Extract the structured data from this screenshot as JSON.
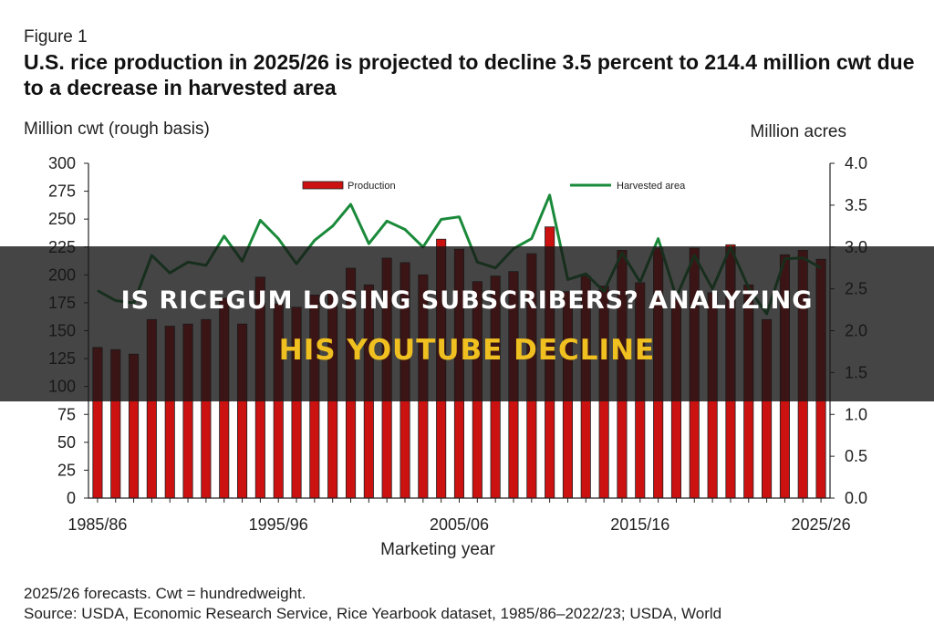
{
  "figure": {
    "label": "Figure 1",
    "title": "U.S. rice production in 2025/26 is projected to decline 3.5 percent to 214.4 million cwt due to a decrease in harvested area"
  },
  "chart_data": {
    "type": "bar",
    "subtype": "bar-line-dual-axis",
    "x_label": "Marketing year",
    "x_tick_labels": [
      "1985/86",
      "1995/96",
      "2005/06",
      "2015/16",
      "2025/26"
    ],
    "categories": [
      "1985/86",
      "1986/87",
      "1987/88",
      "1988/89",
      "1989/90",
      "1990/91",
      "1991/92",
      "1992/93",
      "1993/94",
      "1994/95",
      "1995/96",
      "1996/97",
      "1997/98",
      "1998/99",
      "1999/00",
      "2000/01",
      "2001/02",
      "2002/03",
      "2003/04",
      "2004/05",
      "2005/06",
      "2006/07",
      "2007/08",
      "2008/09",
      "2009/10",
      "2010/11",
      "2011/12",
      "2012/13",
      "2013/14",
      "2014/15",
      "2015/16",
      "2016/17",
      "2017/18",
      "2018/19",
      "2019/20",
      "2020/21",
      "2021/22",
      "2022/23",
      "2023/24",
      "2024/25",
      "2025/26"
    ],
    "y_left": {
      "label": "Million cwt (rough basis)",
      "min": 0,
      "max": 300,
      "step": 25
    },
    "y_right": {
      "label": "Million acres",
      "min": 0,
      "max": 4.0,
      "step": 0.5
    },
    "legend_placement": "top",
    "grid": false,
    "series": [
      {
        "name": "Production",
        "kind": "bar",
        "axis": "left",
        "color": "#cc1111",
        "values": [
          135,
          133,
          129,
          160,
          154,
          156,
          160,
          179,
          156,
          198,
          174,
          171,
          182,
          184,
          206,
          191,
          215,
          211,
          200,
          232,
          223,
          194,
          199,
          203,
          219,
          243,
          185,
          199,
          190,
          222,
          193,
          224,
          178,
          224,
          184,
          227,
          191,
          160,
          218,
          222,
          214
        ]
      },
      {
        "name": "Harvested area",
        "kind": "line",
        "axis": "right",
        "color": "#1a8a3a",
        "values": [
          2.48,
          2.36,
          2.33,
          2.9,
          2.69,
          2.82,
          2.78,
          3.13,
          2.83,
          3.32,
          3.1,
          2.8,
          3.08,
          3.25,
          3.51,
          3.04,
          3.31,
          3.21,
          3.0,
          3.33,
          3.36,
          2.82,
          2.75,
          2.98,
          3.1,
          3.62,
          2.61,
          2.68,
          2.47,
          2.93,
          2.58,
          3.1,
          2.4,
          2.9,
          2.5,
          3.0,
          2.51,
          2.2,
          2.86,
          2.87,
          2.75
        ]
      }
    ]
  },
  "notes": {
    "line1": "2025/26 forecasts. Cwt = hundredweight.",
    "line2": "Source: USDA, Economic Research Service, Rice Yearbook dataset, 1985/86–2022/23; USDA, World"
  },
  "overlay": {
    "line1": "IS RICEGUM LOSING SUBSCRIBERS? ANALYZING",
    "line2": "HIS YOUTUBE DECLINE",
    "background": "#161616",
    "line2_color": "#f0c020"
  }
}
